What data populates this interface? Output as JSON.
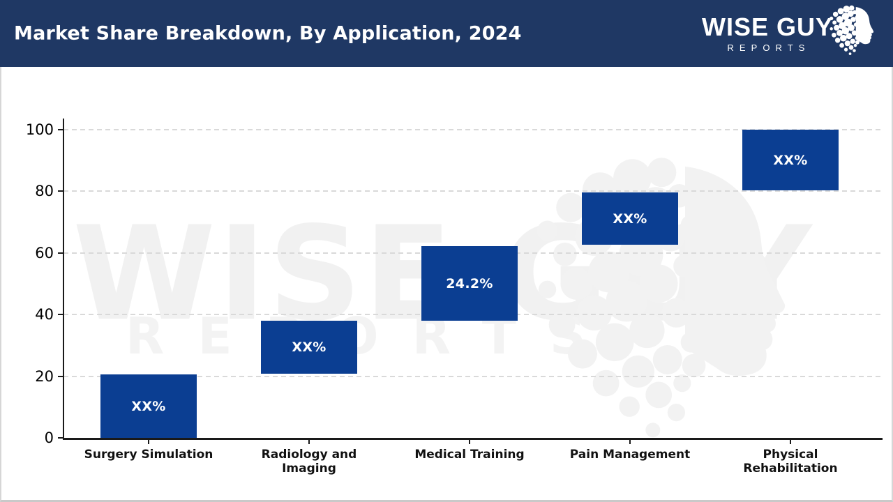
{
  "header": {
    "title": "Market Share Breakdown, By Application, 2024",
    "logo": {
      "wise_guy": "WISE GUY",
      "reports": "REPORTS"
    }
  },
  "watermark": {
    "wise_guy": "WISE GUY",
    "reports": "REPORTS"
  },
  "colors": {
    "header_bg": "#1f3864",
    "bar": "#0b3e92",
    "bar_label": "#ffffff",
    "axis": "#1a1a1a",
    "gridline": "#d9d9d9",
    "watermark": "#f1f1f1"
  },
  "chart_data": {
    "type": "bar",
    "subtype": "waterfall",
    "title": "Market Share Breakdown, By Application, 2024",
    "xlabel": "",
    "ylabel": "",
    "ylim": [
      0,
      100
    ],
    "yticks": [
      "0",
      "20",
      "40",
      "60",
      "80",
      "100"
    ],
    "grid": "horizontal-dashed",
    "legend": "none",
    "bar_color": "#0b3e92",
    "categories": [
      "Surgery Simulation",
      "Radiology and Imaging",
      "Medical Training",
      "Pain Management",
      "Physical Rehabilitation"
    ],
    "category_tick_lines": [
      [
        "Surgery Simulation"
      ],
      [
        "Radiology and",
        "Imaging"
      ],
      [
        "Medical Training"
      ],
      [
        "Pain Management"
      ],
      [
        "Physical",
        "Rehabilitation"
      ]
    ],
    "segments": [
      {
        "category": "Surgery Simulation",
        "start": 0,
        "end": 20.5,
        "height": 20.5,
        "label": "XX%"
      },
      {
        "category": "Radiology and Imaging",
        "start": 20.8,
        "end": 38.0,
        "height": 17.2,
        "label": "XX%"
      },
      {
        "category": "Medical Training",
        "start": 38.0,
        "end": 62.2,
        "height": 24.2,
        "label": "24.2%"
      },
      {
        "category": "Pain Management",
        "start": 62.6,
        "end": 79.6,
        "height": 17.0,
        "label": "XX%"
      },
      {
        "category": "Physical Rehabilitation",
        "start": 80.3,
        "end": 100,
        "height": 19.7,
        "label": "XX%"
      }
    ]
  }
}
